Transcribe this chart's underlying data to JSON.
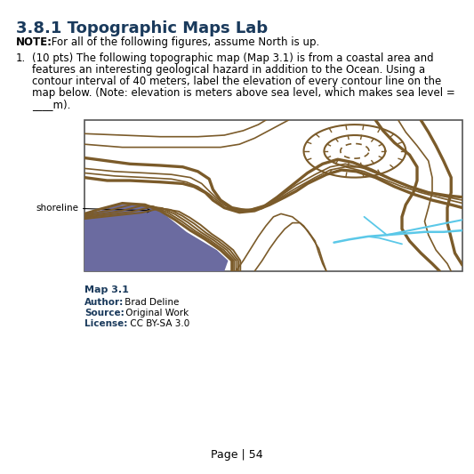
{
  "title": "3.8.1 Topographic Maps Lab",
  "note_bold": "NOTE:",
  "note_rest": " For all of the following figures, assume North is up.",
  "item_num": "1.",
  "body_lines": [
    "(10 pts) The following topographic map (Map 3.1) is from a coastal area and",
    "features an interesting geological hazard in addition to the Ocean. Using a",
    "contour interval of 40 meters, label the elevation of every contour line on the",
    "map below. (Note: elevation is meters above sea level, which makes sea level =",
    "____m)."
  ],
  "map_label": "Map 3.1",
  "author_bold": "Author:",
  "author_rest": " Brad Deline",
  "source_bold": "Source:",
  "source_rest": " Original Work",
  "license_bold": "License:",
  "license_rest": " CC BY-SA 3.0",
  "page_label": "Page | 54",
  "shoreline_label": "shoreline",
  "bg_color": "#ffffff",
  "map_border_color": "#555555",
  "contour_color": "#7B5B2A",
  "ocean_color": "#6B6BA0",
  "river_color": "#5BC8E8",
  "title_color": "#1a3a5c",
  "label_color": "#1a3a5c"
}
